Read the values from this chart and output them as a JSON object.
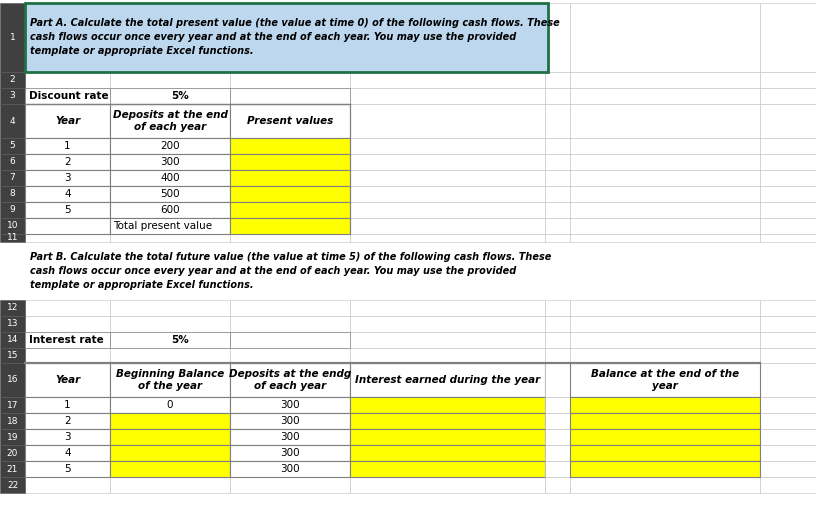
{
  "title_A": "Part A. Calculate the total present value (the value at time 0) of the following cash flows. These\ncash flows occur once every year and at the end of each year. You may use the provided\ntemplate or appropriate Excel functions.",
  "title_B": "Part B. Calculate the total future value (the value at time 5) of the following cash flows. These\ncash flows occur once every year and at the end of each year. You may use the provided\ntemplate or appropriate Excel functions.",
  "discount_rate_label": "Discount rate",
  "discount_rate_value": "5%",
  "interest_rate_label": "Interest rate",
  "interest_rate_value": "5%",
  "part_A_headers": [
    "Year",
    "Deposits at the end\nof each year",
    "Present values"
  ],
  "part_A_years": [
    1,
    2,
    3,
    4,
    5
  ],
  "part_A_deposits": [
    200,
    300,
    400,
    500,
    600
  ],
  "part_A_total_label": "Total present value",
  "part_B_headers_line1": [
    "",
    "Beginning Balance",
    "Deposits at the endg",
    "",
    "Balance at the end of the"
  ],
  "part_B_headers_line2": [
    "Year",
    "of the year",
    "of each year",
    "Interest earned during the year",
    "year"
  ],
  "part_B_years": [
    1,
    2,
    3,
    4,
    5
  ],
  "part_B_beg_bal_row1": "0",
  "part_B_deposits": [
    300,
    300,
    300,
    300,
    300
  ],
  "yellow": "#FFFF00",
  "white": "#FFFFFF",
  "light_blue_title": "#BDD7EE",
  "border_green": "#1F7145",
  "grid_dark": "#7F7F7F",
  "grid_light": "#BFBFBF",
  "rn_bg": "#404040",
  "rn_fg": "#FFFFFF",
  "background": "#FFFFFF"
}
